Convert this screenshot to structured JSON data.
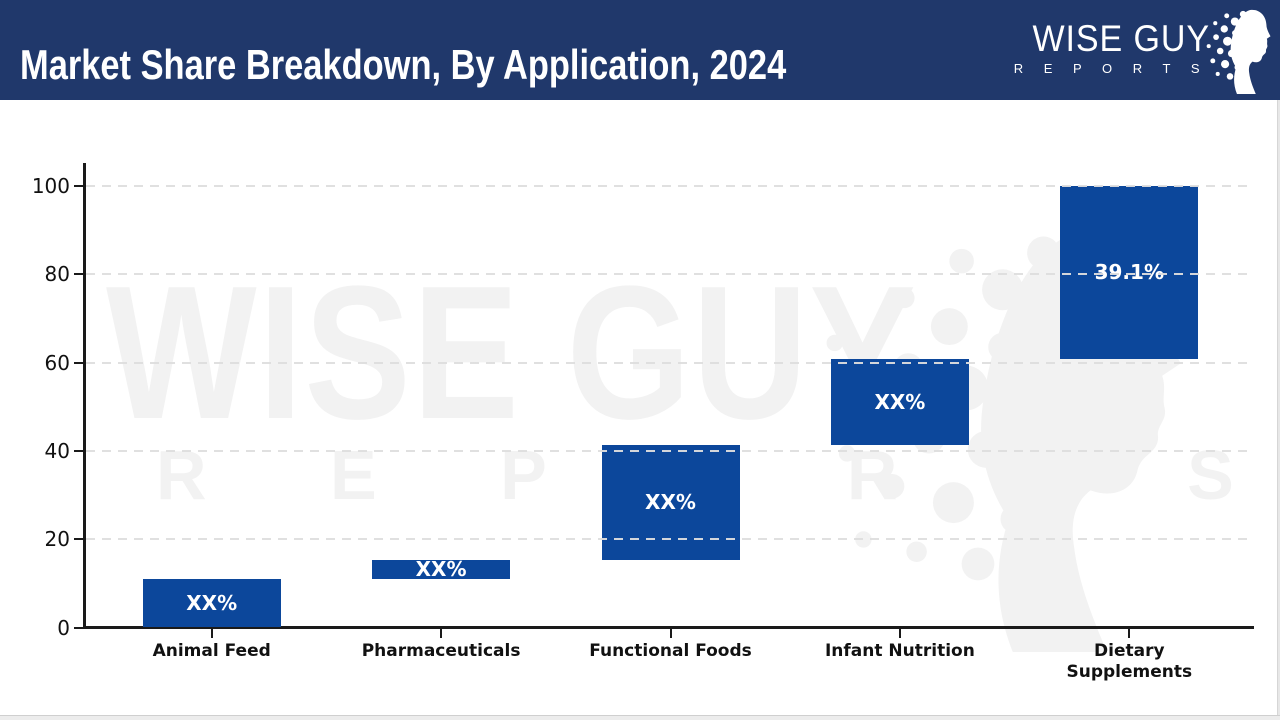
{
  "header": {
    "title": "Market Share Breakdown, By Application, 2024",
    "logo": {
      "primary": "WISE GUY",
      "secondary": "R E P O R T S",
      "icon": "face-profile-dots-icon"
    }
  },
  "watermark": {
    "primary": "WISE GUY",
    "secondary": "R E P O R T S",
    "icon": "face-profile-dots-watermark"
  },
  "colors": {
    "header_bg": "#20386B",
    "bar_fill": "#0C479B",
    "bar_label_text": "#FFFFFF",
    "axis": "#1A1A1A",
    "gridline": "#DEDEDE",
    "tick_text": "#111111",
    "watermark": "#F2F2F2"
  },
  "chart_data": {
    "type": "waterfall",
    "title": "Market Share Breakdown, By Application, 2024",
    "categories": [
      "Animal Feed",
      "Pharmaceuticals",
      "Functional Foods",
      "Infant Nutrition",
      "Dietary Supplements"
    ],
    "segments": [
      {
        "category": "Animal Feed",
        "start": 0,
        "end": 11,
        "value": 11,
        "label": "XX%"
      },
      {
        "category": "Pharmaceuticals",
        "start": 11,
        "end": 15.3,
        "value": 4.3,
        "label": "XX%"
      },
      {
        "category": "Functional Foods",
        "start": 15.3,
        "end": 41.4,
        "value": 26.1,
        "label": "XX%"
      },
      {
        "category": "Infant Nutrition",
        "start": 41.4,
        "end": 60.9,
        "value": 19.5,
        "label": "XX%"
      },
      {
        "category": "Dietary Supplements",
        "start": 60.9,
        "end": 100,
        "value": 39.1,
        "label": "39.1%"
      }
    ],
    "xlabel": "",
    "ylabel": "",
    "yticks": [
      0,
      20,
      40,
      60,
      80,
      100
    ],
    "ylim": [
      0,
      105
    ],
    "grid": "horizontal-dashed",
    "legend": "none",
    "bar_color": "#0C479B"
  }
}
